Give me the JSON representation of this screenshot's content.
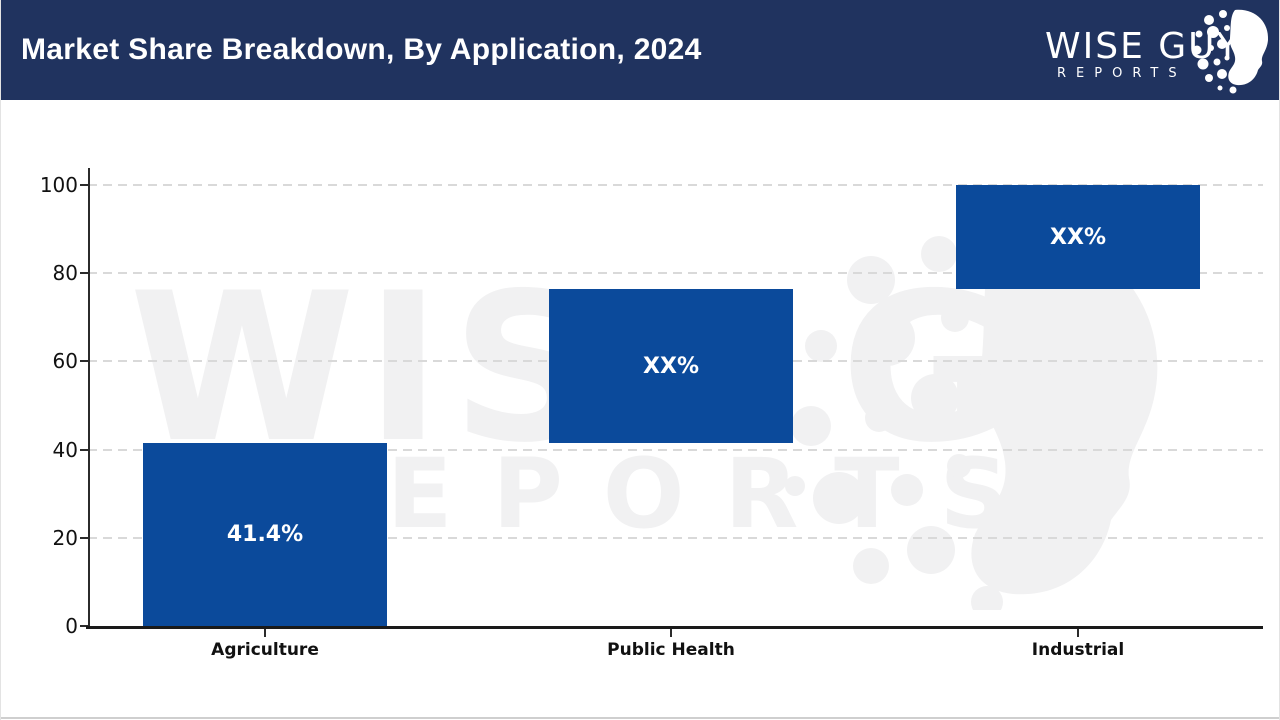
{
  "header": {
    "title": "Market Share Breakdown, By Application, 2024"
  },
  "branding": {
    "logo_line1": "WISE GUY",
    "logo_line2": "REPORTS",
    "watermark_line1": "WISE G",
    "watermark_line2": "REPORTS"
  },
  "chart_data": {
    "type": "bar",
    "subtype": "waterfall-cumulative",
    "title": "Market Share Breakdown, By Application, 2024",
    "categories": [
      "Agriculture",
      "Public Health",
      "Industrial"
    ],
    "bar_labels": [
      "41.4%",
      "XX%",
      "XX%"
    ],
    "segments": [
      {
        "category": "Agriculture",
        "label": "41.4%",
        "start": 0,
        "end": 41.4
      },
      {
        "category": "Public Health",
        "label": "XX%",
        "start": 41.4,
        "end": 76.4
      },
      {
        "category": "Industrial",
        "label": "XX%",
        "start": 76.4,
        "end": 100
      }
    ],
    "ylim": [
      0,
      100
    ],
    "yticks": [
      0,
      20,
      40,
      60,
      80,
      100
    ],
    "xlabel": "",
    "ylabel": "",
    "grid": "horizontal-dashed",
    "legend": "none",
    "bar_color": "#0b4a9b",
    "grid_color": "#d9d9d9",
    "axis_color": "#1a1a1a",
    "header_color": "#20335f",
    "label_color": "#ffffff"
  }
}
